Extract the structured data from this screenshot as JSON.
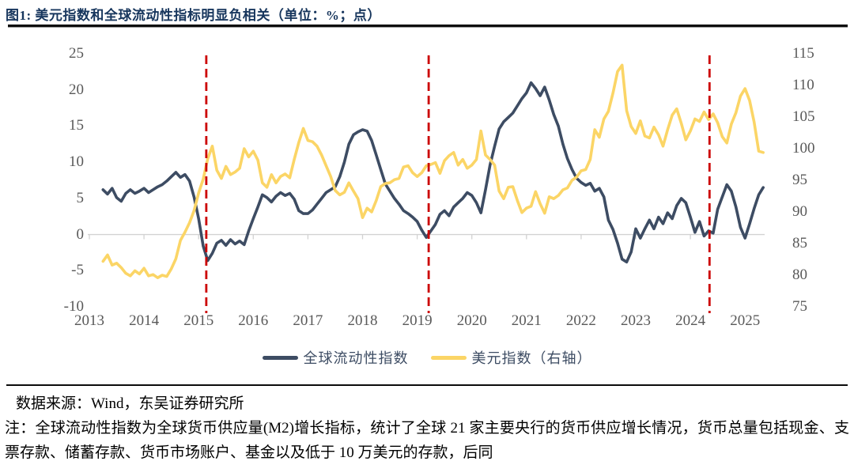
{
  "title": "图1: 美元指数和全球流动性指标明显负相关（单位：%；点）",
  "source_line": "数据来源：Wind，东吴证券研究所",
  "note_line": "注：全球流动性指数为全球货币供应量(M2)增长指标，统计了全球 21 家主要央行的货币供应增长情况，货币总量包括现金、支票存款、储蓄存款、货币市场账户、基金以及低于 10 万美元的存款，后同",
  "colors": {
    "liquidity_line": "#3d4c63",
    "usd_index_line": "#fbd566",
    "event_line": "#cc0000",
    "axis_line": "#d2d2d2",
    "tick_label": "#595959",
    "title_text": "#17365d",
    "rule": "#0b0b0b"
  },
  "chart_data": {
    "type": "line",
    "title": "美元指数和全球流动性指标明显负相关",
    "units": "%；点",
    "x_start": 2013.25,
    "x_step_years": 0.0833333,
    "x_tick_labels": [
      "2013",
      "2014",
      "2015",
      "2016",
      "2017",
      "2018",
      "2019",
      "2020",
      "2021",
      "2022",
      "2023",
      "2024",
      "2025"
    ],
    "y_left": {
      "min": -10,
      "max": 25,
      "ticks": [
        25,
        20,
        15,
        10,
        5,
        0,
        -5,
        -10
      ]
    },
    "y_right": {
      "min": 75,
      "max": 115,
      "ticks": [
        115,
        110,
        105,
        100,
        95,
        90,
        85,
        80,
        75
      ]
    },
    "grid": "zero-axis-only",
    "legend_position": "bottom-center",
    "event_lines_x": [
      2015.14,
      2019.21,
      2024.35
    ],
    "series": [
      {
        "name": "全球流动性指数",
        "axis": "left",
        "color": "#3d4c63",
        "values": [
          6.2,
          5.6,
          6.4,
          5.1,
          4.6,
          5.7,
          6.2,
          5.7,
          6.0,
          6.4,
          5.8,
          6.2,
          6.6,
          6.9,
          7.4,
          8.0,
          8.6,
          7.9,
          8.3,
          7.4,
          5.2,
          2.2,
          -1.6,
          -3.6,
          -2.6,
          -1.2,
          -0.8,
          -1.5,
          -0.7,
          -1.3,
          -0.9,
          -1.4,
          0.5,
          2.2,
          3.8,
          5.5,
          5.1,
          4.5,
          5.3,
          5.8,
          5.4,
          5.7,
          4.9,
          3.3,
          2.9,
          2.9,
          3.4,
          4.2,
          5.0,
          5.8,
          6.2,
          6.6,
          8.0,
          10.0,
          12.5,
          13.8,
          14.2,
          14.5,
          14.3,
          13.0,
          11.0,
          9.0,
          7.0,
          6.0,
          5.0,
          4.2,
          3.3,
          2.9,
          2.4,
          1.8,
          0.6,
          -0.4,
          0.5,
          1.4,
          2.8,
          3.3,
          2.6,
          3.8,
          4.4,
          5.0,
          5.8,
          5.4,
          4.4,
          3.0,
          6.2,
          9.6,
          12.2,
          14.6,
          15.6,
          16.2,
          16.8,
          17.8,
          18.8,
          19.6,
          21.0,
          20.2,
          19.2,
          20.4,
          18.6,
          16.6,
          15.0,
          12.5,
          10.5,
          9.0,
          7.8,
          7.2,
          6.8,
          7.1,
          6.0,
          6.4,
          5.2,
          2.0,
          0.7,
          -1.2,
          -3.4,
          -3.8,
          -2.4,
          0.8,
          -0.5,
          0.8,
          2.0,
          0.8,
          2.4,
          1.5,
          3.0,
          2.2,
          4.0,
          5.0,
          4.4,
          2.4,
          0.3,
          1.8,
          -0.2,
          0.5,
          0.2,
          3.5,
          5.2,
          6.9,
          6.0,
          3.8,
          1.0,
          -0.5,
          1.5,
          3.6,
          5.5,
          6.5
        ]
      },
      {
        "name": "美元指数（右轴）",
        "axis": "right",
        "color": "#fbd566",
        "values": [
          82.2,
          83.2,
          81.6,
          81.9,
          81.2,
          80.3,
          79.9,
          80.7,
          80.2,
          81.1,
          79.9,
          80.1,
          79.6,
          80.0,
          79.8,
          81.0,
          82.6,
          85.5,
          86.8,
          88.3,
          90.2,
          93.0,
          95.2,
          98.4,
          100.4,
          96.6,
          95.3,
          97.2,
          95.9,
          96.3,
          96.9,
          100.0,
          98.7,
          99.6,
          98.2,
          94.6,
          93.9,
          95.9,
          94.6,
          95.6,
          96.0,
          95.4,
          98.3,
          101.0,
          103.2,
          101.3,
          101.1,
          100.4,
          99.0,
          97.3,
          95.6,
          93.4,
          92.7,
          93.1,
          94.6,
          93.3,
          92.1,
          89.1,
          90.6,
          90.0,
          91.8,
          94.0,
          94.5,
          94.6,
          95.1,
          95.3,
          97.1,
          97.3,
          96.2,
          95.6,
          96.2,
          97.3,
          97.5,
          97.8,
          96.1,
          98.1,
          98.9,
          99.4,
          97.4,
          98.3,
          96.9,
          97.4,
          98.3,
          102.8,
          99.0,
          98.3,
          97.4,
          93.3,
          92.1,
          93.9,
          94.0,
          91.8,
          89.9,
          90.6,
          90.9,
          93.2,
          91.3,
          89.8,
          92.4,
          92.1,
          92.6,
          93.5,
          93.8,
          95.0,
          95.5,
          96.5,
          96.7,
          98.3,
          103.0,
          101.8,
          104.7,
          105.9,
          108.8,
          112.2,
          113.2,
          106.0,
          103.5,
          102.4,
          104.4,
          102.0,
          101.7,
          103.4,
          102.2,
          100.4,
          103.0,
          105.3,
          106.3,
          104.0,
          101.4,
          102.8,
          104.7,
          104.3,
          105.8,
          104.6,
          105.5,
          104.1,
          101.9,
          100.9,
          103.9,
          105.7,
          108.3,
          109.5,
          107.6,
          104.2,
          99.6,
          99.4
        ]
      }
    ]
  }
}
